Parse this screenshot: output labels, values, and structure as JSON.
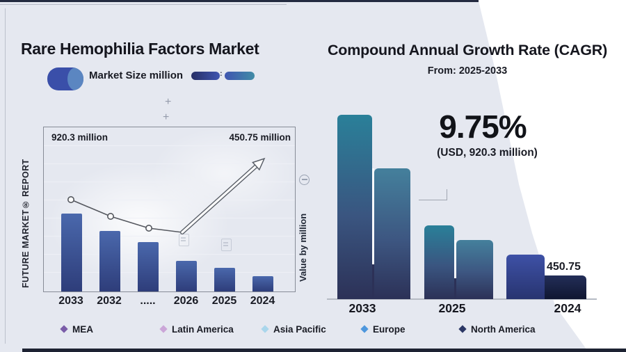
{
  "header": {
    "title": "Rare Hemophilia Factors Market",
    "dataset_label": "Market Size million",
    "ratio_separator": ":"
  },
  "watermarks": {
    "vertical_left": "FUTURE MARKET® REPORT"
  },
  "icons": {
    "plus": "+"
  },
  "legend": {
    "items": [
      {
        "label": "MEA",
        "color": "#7a5ca8"
      },
      {
        "label": "Latin America",
        "color": "#cba6d8"
      },
      {
        "label": "Asia Pacific",
        "color": "#a9d6ec"
      },
      {
        "label": "Europe",
        "color": "#4e97dd"
      },
      {
        "label": "North America",
        "color": "#2b3765"
      }
    ]
  },
  "colors": {
    "panel": "#e5e8f0",
    "title_text": "#15161e",
    "footer_bar": "#1d2232",
    "left_bar_top": "#4a68ac",
    "left_bar_bottom": "#2e3d7a",
    "pill_1": [
      "#272f66",
      "#3f55b0"
    ],
    "pill_2": [
      "#3f55b0",
      "#418ca6"
    ],
    "palettes": {
      "teal": [
        "#2a8099",
        "#3a5580",
        "#2c3157"
      ],
      "teal_soft": [
        "#44809c",
        "#3d5681",
        "#2c3157"
      ],
      "royal": [
        "#3e51a6",
        "#283470"
      ],
      "navy": [
        "#232e58",
        "#0f1631"
      ]
    }
  },
  "chart_data": [
    {
      "type": "bar",
      "name": "market-size-trend",
      "title": "Rare Hemophilia Factors Market",
      "series_label": "Market Size million",
      "categories": [
        "2033",
        "2032",
        ".....",
        "2026",
        "2025",
        "2024"
      ],
      "relative_heights": [
        1.0,
        0.78,
        0.63,
        0.39,
        0.3,
        0.2
      ],
      "start_annotation": "920.3 million",
      "end_annotation": "450.75 million",
      "ylabel": "Value by million",
      "legend_position": "bottom",
      "grid": true,
      "trend_line": "declining line with circle markers over 2033-2026, then sharp outlined arrow rising to upper right"
    },
    {
      "type": "bar",
      "name": "cagr-highlight",
      "title": "Compound Annual Growth Rate (CAGR)",
      "subtitle": "From: 2025-2033",
      "cagr": "9.75%",
      "cagr_note": "(USD, 920.3 million)",
      "categories": [
        "2033",
        "2025",
        "2024"
      ],
      "groups": [
        {
          "label": "2033",
          "bars": [
            {
              "rel_height": 1.0,
              "palette": "teal"
            },
            {
              "rel_height": 0.71,
              "palette": "teal_soft"
            }
          ]
        },
        {
          "label": "2025",
          "bars": [
            {
              "rel_height": 0.4,
              "palette": "teal"
            },
            {
              "rel_height": 0.32,
              "palette": "teal_soft"
            }
          ]
        },
        {
          "label": "2024",
          "bars": [
            {
              "rel_height": 0.24,
              "palette": "royal"
            },
            {
              "rel_height": 0.13,
              "palette": "navy"
            }
          ]
        }
      ],
      "annotation": {
        "text": "450.75",
        "category": "2024"
      },
      "grid": false
    }
  ]
}
